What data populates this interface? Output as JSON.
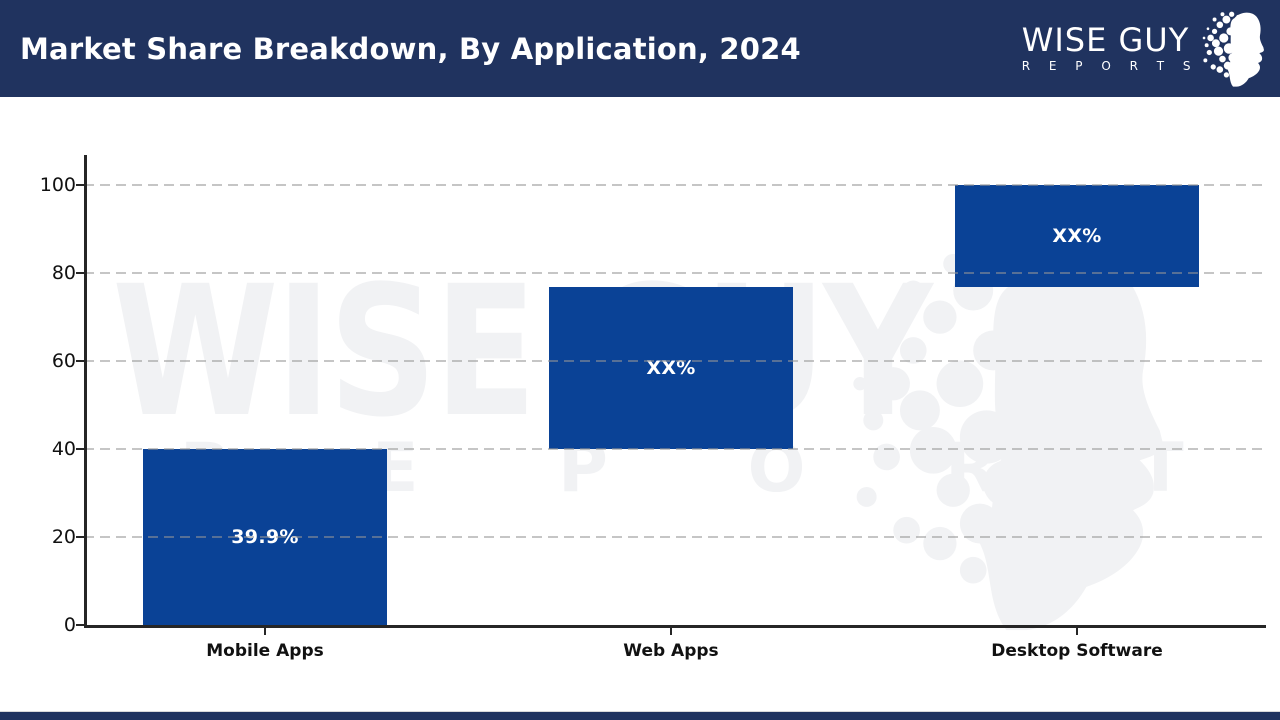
{
  "header": {
    "title": "Market Share Breakdown, By Application, 2024",
    "logo": {
      "line1": "WISE GUY",
      "line2": "R E P O R T S",
      "mark": "head-of-dots"
    }
  },
  "watermark": {
    "line1": "WISE GUY",
    "line2": "R E P O R T S"
  },
  "chart_data": {
    "type": "bar",
    "subtype": "floating-segment-bar",
    "title": "Market Share Breakdown, By Application, 2024",
    "categories": [
      "Mobile Apps",
      "Web Apps",
      "Desktop Software"
    ],
    "segments": [
      {
        "category": "Mobile Apps",
        "start": 0,
        "end": 39.9,
        "label": "39.9%"
      },
      {
        "category": "Web Apps",
        "start": 40,
        "end": 76.8,
        "label": "XX%"
      },
      {
        "category": "Desktop Software",
        "start": 76.8,
        "end": 100,
        "label": "XX%"
      }
    ],
    "xlabel": "",
    "ylabel": "",
    "yticks": [
      0,
      20,
      40,
      60,
      80,
      100
    ],
    "ylim": [
      0,
      106.8
    ],
    "grid": "horizontal-dashed",
    "legend": "none",
    "bar_color": "#0a4296",
    "value_label_color": "#ffffff"
  },
  "colors": {
    "header_bg": "#20335f",
    "footer_bg": "#20335f",
    "bar": "#0a4296",
    "axis": "#262626",
    "gridline": "#969696",
    "watermark": "#f1f2f4",
    "title_text": "#ffffff",
    "tick_text": "#111111"
  }
}
